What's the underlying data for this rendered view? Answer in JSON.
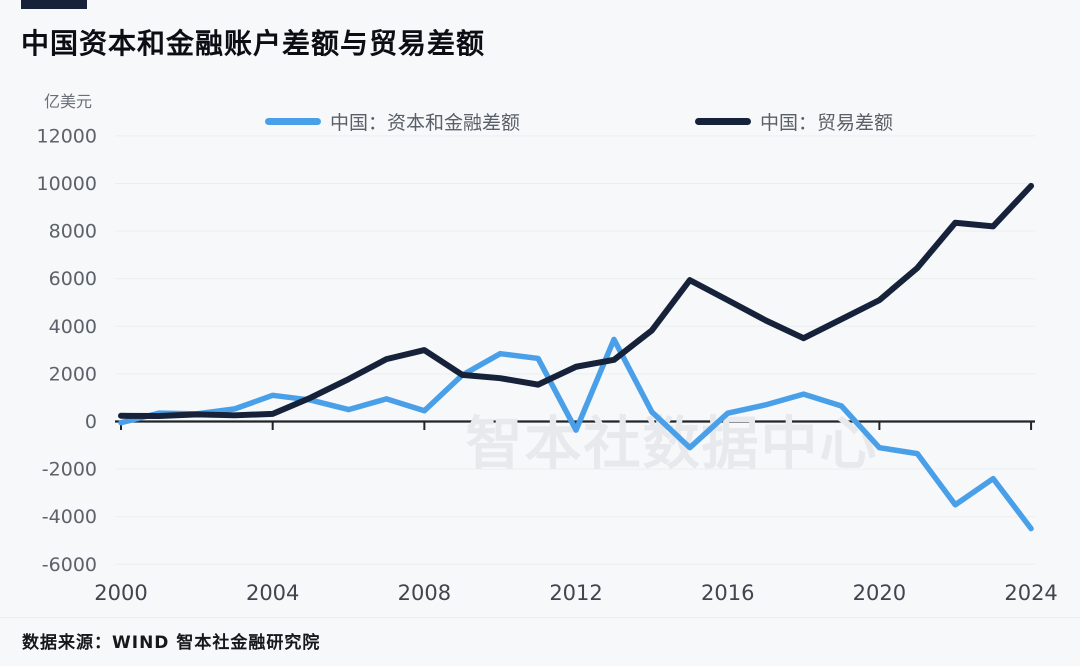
{
  "page": {
    "background": "#f7f8fa"
  },
  "header": {
    "accent_color": "#16223a",
    "title": "中国资本和金融账户差额与贸易差额"
  },
  "chart_data": {
    "type": "line",
    "title": "中国资本和金融账户差额与贸易差额",
    "unit_label": "亿美元",
    "watermark": "智本社数据中心",
    "grid": true,
    "legend_position": "top",
    "ylim": [
      -6000,
      12000
    ],
    "yticks": [
      12000,
      10000,
      8000,
      6000,
      4000,
      2000,
      0,
      -2000,
      -4000,
      -6000
    ],
    "xticks": [
      2000,
      2004,
      2008,
      2012,
      2016,
      2020,
      2024
    ],
    "x": [
      2000,
      2001,
      2002,
      2003,
      2004,
      2005,
      2006,
      2007,
      2008,
      2009,
      2010,
      2011,
      2012,
      2013,
      2014,
      2015,
      2016,
      2017,
      2018,
      2019,
      2020,
      2021,
      2022,
      2023,
      2024
    ],
    "series": [
      {
        "name": "中国：资本和金融差额",
        "color": "#4AA0E8",
        "values": [
          -50,
          350,
          320,
          530,
          1100,
          900,
          500,
          950,
          450,
          1950,
          2850,
          2650,
          -360,
          3450,
          400,
          -1100,
          350,
          700,
          1150,
          650,
          -1100,
          -1350,
          -3500,
          -2400,
          -4500
        ]
      },
      {
        "name": "中国：贸易差额",
        "color": "#16223a",
        "values": [
          240,
          230,
          300,
          260,
          320,
          1000,
          1780,
          2620,
          3000,
          1960,
          1820,
          1550,
          2300,
          2590,
          3830,
          5940,
          5100,
          4250,
          3500,
          4300,
          5100,
          6450,
          8350,
          8200,
          9900
        ]
      }
    ],
    "axis_colors": {
      "grid": "#ebedf0",
      "zero_axis": "#212529",
      "y_label": "#5c626b",
      "x_label": "#40454e"
    }
  },
  "footer": {
    "source": "数据来源：WIND 智本社金融研究院"
  }
}
